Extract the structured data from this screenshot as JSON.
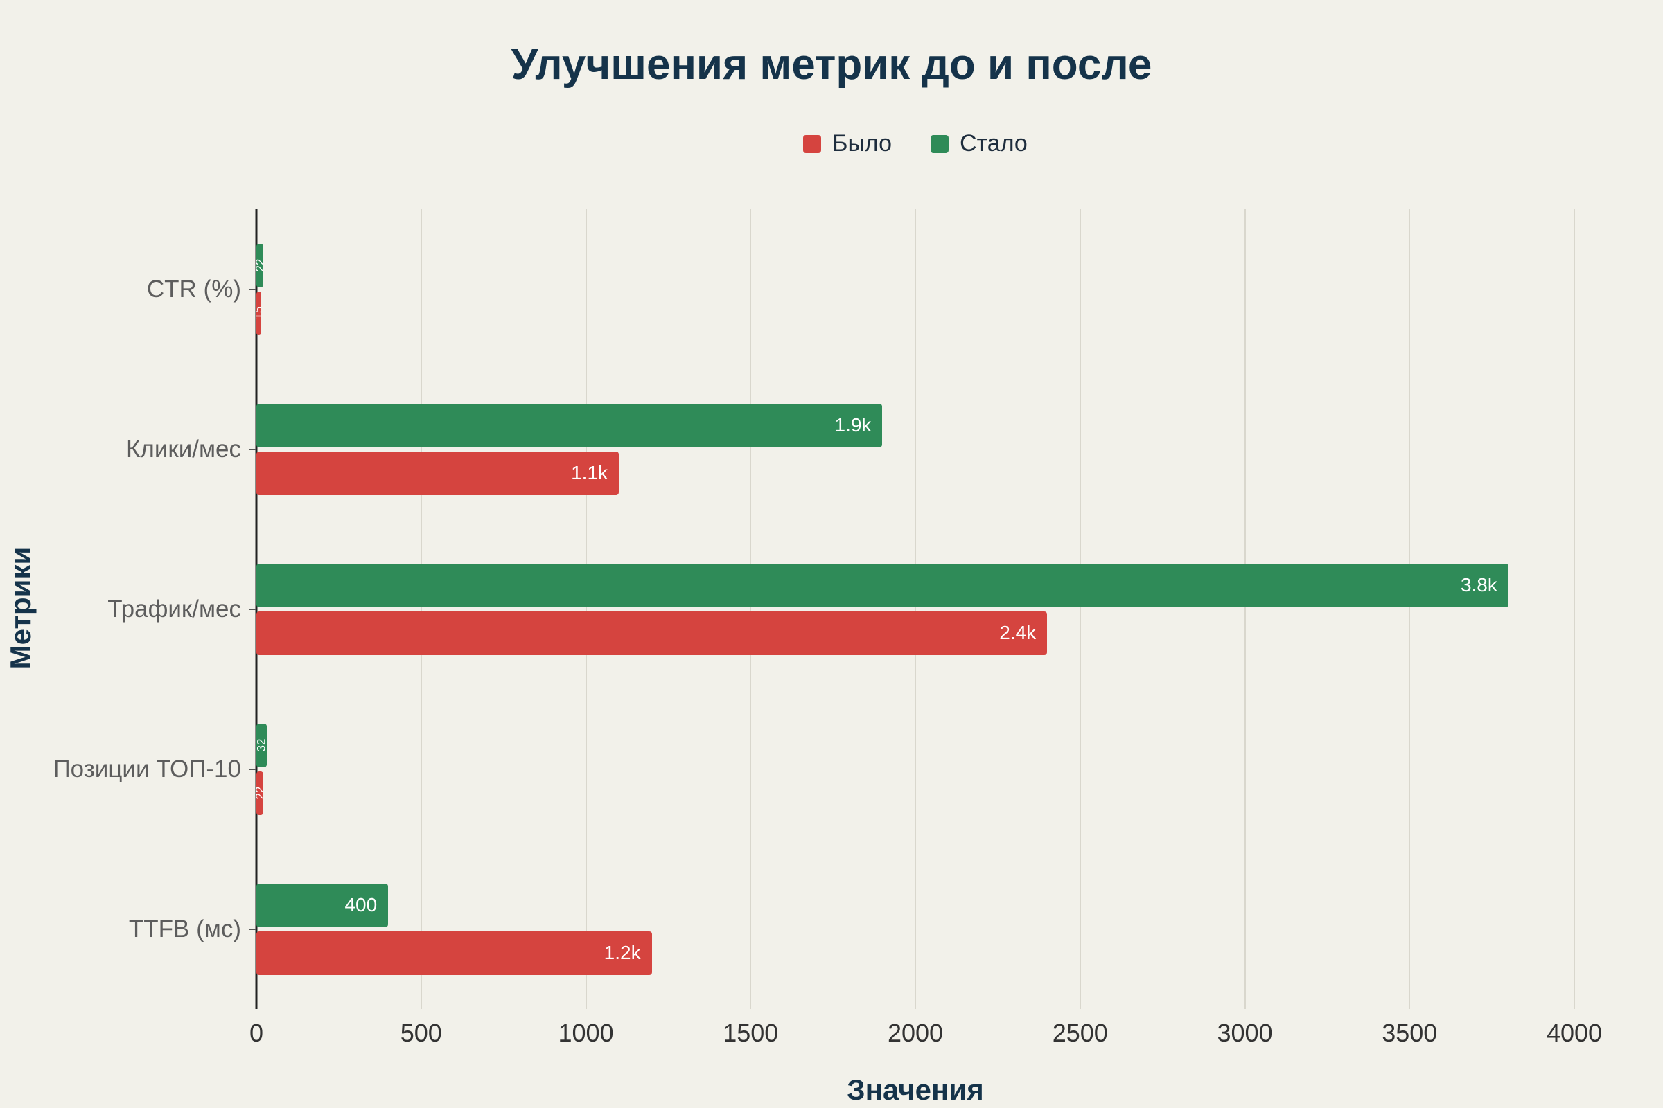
{
  "legend": {
    "items": [
      {
        "label": "Было",
        "color": "#d5443f"
      },
      {
        "label": "Стало",
        "color": "#2f8b58"
      }
    ]
  },
  "chart_data": {
    "type": "bar",
    "orientation": "horizontal",
    "title": "Улучшения метрик до и после",
    "categories": [
      "CTR (%)",
      "Клики/мес",
      "Трафик/мес",
      "Позиции ТОП-10",
      "TTFB (мс)"
    ],
    "series": [
      {
        "name": "Стало",
        "color": "#2f8b58",
        "values": [
          22,
          1900,
          3800,
          32,
          400
        ],
        "labels": [
          "22",
          "1.9k",
          "3.8k",
          "32",
          "400"
        ]
      },
      {
        "name": "Было",
        "color": "#d5443f",
        "values": [
          15,
          1100,
          2400,
          22,
          1200
        ],
        "labels": [
          "15",
          "1.1k",
          "2.4k",
          "22",
          "1.2k"
        ]
      }
    ],
    "xlim": [
      0,
      4000
    ],
    "x_ticks": [
      0,
      500,
      1000,
      1500,
      2000,
      2500,
      3000,
      3500,
      4000
    ],
    "xlabel": "Значения",
    "ylabel": "Метрики",
    "grid": true,
    "legend_position": "top-center"
  }
}
